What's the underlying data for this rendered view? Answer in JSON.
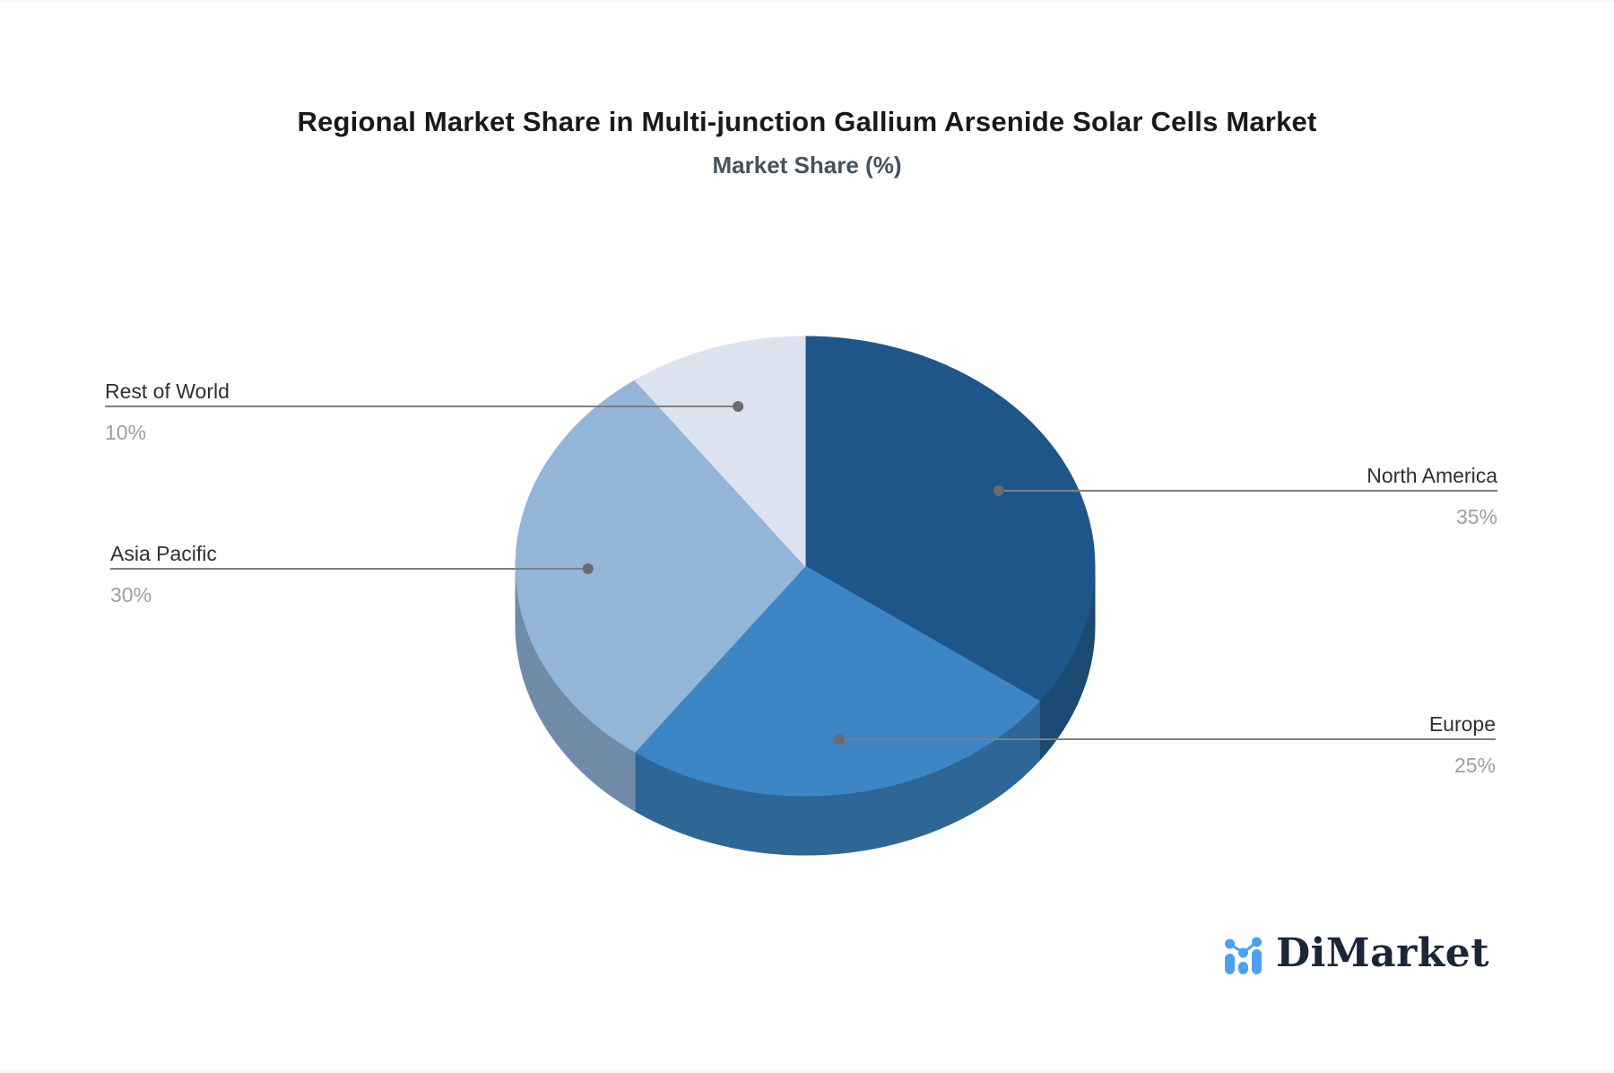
{
  "header": {
    "title": "Regional Market Share in Multi-junction Gallium Arsenide Solar Cells Market",
    "subtitle": "Market Share (%)"
  },
  "chart_data": {
    "type": "pie",
    "style": "3d",
    "title": "Regional Market Share in Multi-junction Gallium Arsenide Solar Cells Market",
    "subtitle": "Market Share (%)",
    "unit": "%",
    "start_angle_deg": 0,
    "direction": "clockwise",
    "legend": "none",
    "segments": [
      {
        "label": "North America",
        "value": 35,
        "value_label": "35%",
        "color": "#1E568A",
        "side_color": "#1B4A72",
        "label_side": "right"
      },
      {
        "label": "Europe",
        "value": 25,
        "value_label": "25%",
        "color": "#3C86C6",
        "side_color": "#2E6795",
        "label_side": "right"
      },
      {
        "label": "Asia Pacific",
        "value": 30,
        "value_label": "30%",
        "color": "#93B5D8",
        "side_color": "#6F8BA8",
        "label_side": "left"
      },
      {
        "label": "Rest of World",
        "value": 10,
        "value_label": "10%",
        "color": "#DCE3EE",
        "side_color": "#C9D1DE",
        "label_side": "left"
      }
    ],
    "connector_color": "#7F7F7F",
    "connector_dot_color": "#6B6B6B"
  },
  "branding": {
    "logo_text": "DiMarket",
    "logo_icon": "bar-chart-logo-icon",
    "accent_color": "#4BA0F4",
    "text_color": "#1B2638"
  }
}
